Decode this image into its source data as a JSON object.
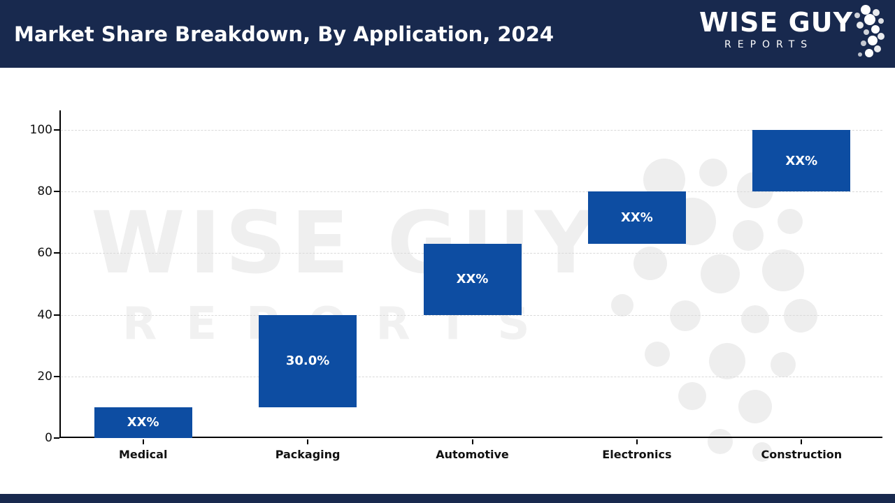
{
  "header": {
    "title": "Market Share Breakdown, By Application, 2024",
    "logo": {
      "line1": "WISE GUY",
      "line2": "REPORTS"
    }
  },
  "watermark": {
    "line1": "WISE GUY",
    "line2": "REPORTS"
  },
  "colors": {
    "header_bg": "#18294e",
    "bar": "#0d4da2",
    "gridline": "#d9d9d9",
    "watermark": "#efefef"
  },
  "chart_data": {
    "type": "bar",
    "subtype": "floating-waterfall",
    "title": "Market Share Breakdown, By Application, 2024",
    "categories": [
      "Medical",
      "Packaging",
      "Automotive",
      "Electronics",
      "Construction"
    ],
    "segments": [
      {
        "category": "Medical",
        "start": 0,
        "end": 10,
        "label": "XX%"
      },
      {
        "category": "Packaging",
        "start": 10,
        "end": 40,
        "label": "30.0%"
      },
      {
        "category": "Automotive",
        "start": 40,
        "end": 63,
        "label": "XX%"
      },
      {
        "category": "Electronics",
        "start": 63,
        "end": 80,
        "label": "XX%"
      },
      {
        "category": "Construction",
        "start": 80,
        "end": 100,
        "label": "XX%"
      }
    ],
    "xlabel": "",
    "ylabel": "",
    "ylim": [
      0,
      100
    ],
    "yticks": [
      0,
      20,
      40,
      60,
      80,
      100
    ],
    "grid": "horizontal-dashed",
    "legend": "none",
    "bar_color": "#0d4da2"
  }
}
